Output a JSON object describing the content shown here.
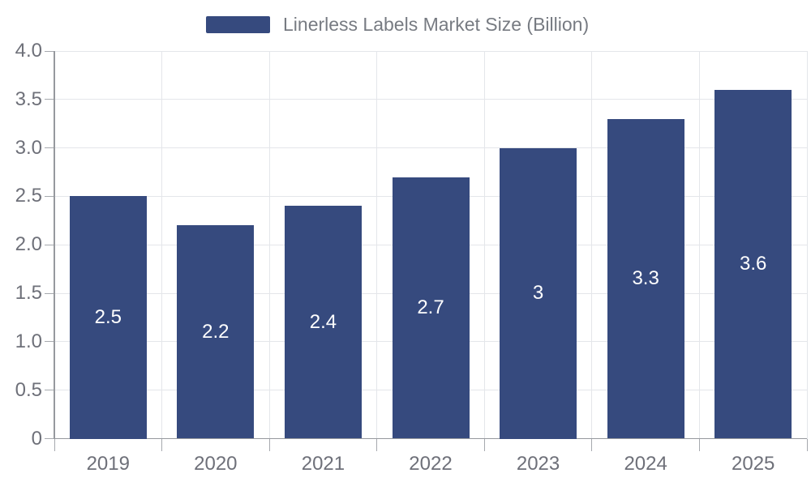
{
  "legend": {
    "label": "Linerless Labels Market Size (Billion)"
  },
  "chart_data": {
    "type": "bar",
    "title": "Linerless Labels Market Size (Billion)",
    "categories": [
      "2019",
      "2020",
      "2021",
      "2022",
      "2023",
      "2024",
      "2025"
    ],
    "series": [
      {
        "name": "Linerless Labels Market Size (Billion)",
        "values": [
          2.5,
          2.2,
          2.4,
          2.7,
          3,
          3.3,
          3.6
        ],
        "value_labels": [
          "2.5",
          "2.2",
          "2.4",
          "2.7",
          "3",
          "3.3",
          "3.6"
        ]
      }
    ],
    "xlabel": "",
    "ylabel": "",
    "ylim": [
      0,
      4
    ],
    "y_tick_step": 0.5,
    "y_tick_labels": [
      "0",
      "0.5",
      "1.0",
      "1.5",
      "2.0",
      "2.5",
      "3.0",
      "3.5",
      "4.0"
    ],
    "grid": true,
    "legend_position": "top-center",
    "label_position": "inside-center",
    "colors": {
      "bar": "#364a7e",
      "grid": "#e4e6ea",
      "axis": "#96999e",
      "tick": "#a6a9ae",
      "axis_label": "#6e7079",
      "data_label": "#ffffff",
      "legend_text": "#777b82"
    }
  }
}
